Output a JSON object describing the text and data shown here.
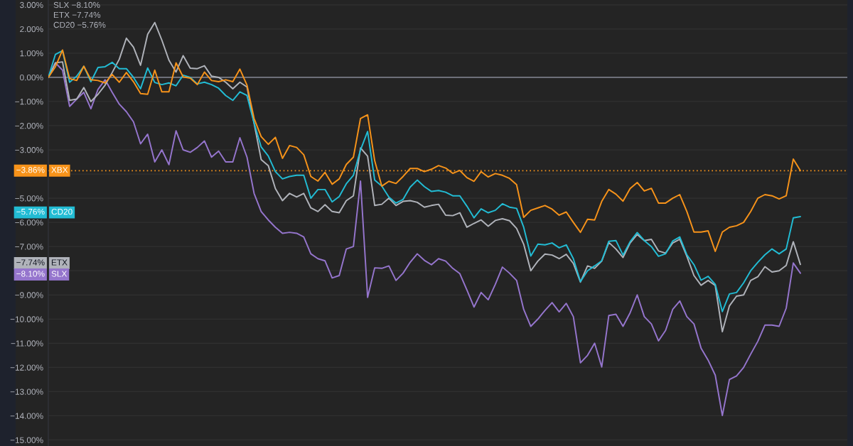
{
  "chart_data": {
    "type": "line",
    "categories": [
      null,
      null,
      null,
      null,
      null,
      null,
      null,
      null,
      null,
      null,
      null,
      null,
      null,
      null,
      null,
      null,
      null,
      null,
      null,
      null,
      null,
      null,
      null,
      null,
      null,
      null,
      null,
      null,
      null,
      null,
      null,
      null,
      null,
      null,
      null,
      null,
      null,
      null,
      null,
      null,
      null,
      null,
      null,
      null,
      null,
      null,
      null,
      null,
      null,
      null,
      null,
      null,
      null,
      null,
      null,
      null,
      null,
      null,
      null,
      null,
      null,
      null,
      null,
      null,
      null,
      null,
      null,
      null,
      null,
      null,
      null,
      null,
      null,
      null,
      null,
      null,
      null,
      null,
      null,
      null,
      null,
      null,
      null,
      null,
      null,
      null,
      null,
      null,
      null,
      null,
      null,
      null,
      null,
      null,
      null,
      null,
      null,
      null,
      null,
      null,
      null,
      null,
      null,
      null,
      null,
      null,
      null
    ],
    "series": [
      {
        "name": "XBX",
        "color": "#f7931a",
        "values": [
          0,
          0.44,
          1.13,
          -0.05,
          -0.13,
          0.46,
          -0.1,
          -0.13,
          -0.23,
          0.12,
          -0.2,
          0.2,
          -0.18,
          -0.67,
          -0.7,
          0.3,
          -0.6,
          -0.6,
          0.6,
          0.02,
          -0.03,
          -0.3,
          0.22,
          -0.13,
          -0.18,
          -0.1,
          -0.18,
          0.34,
          -0.32,
          -1.7,
          -2.45,
          -2.77,
          -2.48,
          -3.35,
          -2.82,
          -2.9,
          -3.2,
          -4.1,
          -4.29,
          -3.93,
          -4.42,
          -4.2,
          -3.6,
          -3.3,
          -1.7,
          -1.55,
          -3.45,
          -4.5,
          -4.3,
          -4.39,
          -4.1,
          -3.77,
          -3.77,
          -3.9,
          -3.8,
          -3.65,
          -3.75,
          -3.97,
          -3.85,
          -4.15,
          -4.3,
          -3.9,
          -4.12,
          -3.98,
          -4.05,
          -4.18,
          -4.44,
          -5.79,
          -5.5,
          -5.4,
          -5.3,
          -5.45,
          -5.7,
          -5.57,
          -6.0,
          -6.41,
          -5.87,
          -5.9,
          -5.13,
          -4.64,
          -4.83,
          -5.12,
          -4.6,
          -4.35,
          -4.7,
          -4.59,
          -5.2,
          -5.2,
          -5.0,
          -4.85,
          -5.55,
          -6.4,
          -6.4,
          -6.35,
          -7.2,
          -6.4,
          -6.2,
          -6.14,
          -6.0,
          -5.55,
          -5.0,
          -4.85,
          -4.9,
          -5.03,
          -4.9,
          -3.38,
          -3.86
        ]
      },
      {
        "name": "CD20",
        "color": "#22bcd4",
        "values": [
          0,
          0.95,
          1.1,
          -0.2,
          0.05,
          0.46,
          -0.18,
          0.41,
          0.44,
          0.62,
          0.36,
          0.36,
          0.0,
          -0.47,
          0.39,
          -0.21,
          -0.3,
          -0.23,
          -0.35,
          0.09,
          0.0,
          -0.27,
          -0.2,
          -0.3,
          -0.45,
          -0.75,
          -0.95,
          -0.6,
          -0.75,
          -1.89,
          -2.88,
          -3.25,
          -3.9,
          -4.2,
          -4.1,
          -4.05,
          -4.05,
          -5.0,
          -4.64,
          -4.64,
          -5.15,
          -4.93,
          -4.4,
          -4.05,
          -3.0,
          -2.24,
          -4.25,
          -4.5,
          -4.95,
          -5.2,
          -5.05,
          -4.54,
          -4.25,
          -4.52,
          -4.72,
          -4.68,
          -4.75,
          -4.9,
          -4.9,
          -5.33,
          -5.81,
          -5.44,
          -5.6,
          -5.5,
          -5.23,
          -5.37,
          -5.42,
          -6.2,
          -7.39,
          -6.9,
          -6.93,
          -6.85,
          -7.05,
          -6.93,
          -7.5,
          -8.45,
          -8.0,
          -7.8,
          -7.59,
          -6.78,
          -6.75,
          -7.35,
          -6.8,
          -6.42,
          -6.75,
          -7.0,
          -7.4,
          -7.3,
          -6.77,
          -6.6,
          -7.34,
          -7.75,
          -8.39,
          -8.23,
          -8.56,
          -9.69,
          -8.96,
          -8.9,
          -8.5,
          -8.0,
          -7.65,
          -7.34,
          -7.1,
          -7.3,
          -7.1,
          -5.81,
          -5.76
        ]
      },
      {
        "name": "ETX",
        "color": "#b0b3ba",
        "values": [
          0,
          0.6,
          0.64,
          -0.95,
          -0.9,
          -0.42,
          -1.0,
          -0.7,
          -0.32,
          0.2,
          0.75,
          1.62,
          1.25,
          0.5,
          1.78,
          2.27,
          1.54,
          0.71,
          0.22,
          0.9,
          0.38,
          0.36,
          0.48,
          0.05,
          0.0,
          -0.2,
          -0.47,
          -0.2,
          -0.4,
          -1.9,
          -3.4,
          -3.65,
          -4.6,
          -5.1,
          -4.8,
          -4.95,
          -4.8,
          -5.4,
          -5.55,
          -5.27,
          -5.55,
          -5.6,
          -5.1,
          -4.9,
          -2.92,
          -3.26,
          -5.3,
          -5.25,
          -5.0,
          -5.3,
          -5.13,
          -5.1,
          -5.17,
          -5.37,
          -5.3,
          -5.25,
          -5.7,
          -5.72,
          -5.6,
          -6.2,
          -6.04,
          -5.9,
          -6.16,
          -5.92,
          -5.85,
          -5.93,
          -6.25,
          -6.9,
          -8.0,
          -7.6,
          -7.31,
          -7.35,
          -7.5,
          -7.32,
          -7.7,
          -8.47,
          -7.8,
          -7.9,
          -7.6,
          -6.83,
          -7.1,
          -7.45,
          -6.85,
          -6.5,
          -6.75,
          -6.7,
          -7.18,
          -7.27,
          -6.85,
          -6.7,
          -7.4,
          -8.2,
          -8.6,
          -8.4,
          -8.61,
          -10.52,
          -9.45,
          -9.05,
          -9.0,
          -8.4,
          -8.25,
          -7.83,
          -8.05,
          -8.0,
          -7.78,
          -6.8,
          -7.74
        ]
      },
      {
        "name": "SLX",
        "color": "#9575cd",
        "values": [
          0,
          0.6,
          0.3,
          -1.2,
          -0.9,
          -0.62,
          -1.3,
          -0.5,
          -0.1,
          -0.62,
          -1.11,
          -1.42,
          -1.84,
          -2.75,
          -2.35,
          -3.5,
          -3.0,
          -3.61,
          -2.21,
          -3.0,
          -3.1,
          -2.9,
          -2.63,
          -3.3,
          -3.05,
          -3.5,
          -3.5,
          -2.5,
          -3.3,
          -4.8,
          -5.55,
          -5.9,
          -6.2,
          -6.45,
          -6.41,
          -6.45,
          -6.6,
          -7.3,
          -7.5,
          -7.59,
          -8.3,
          -8.2,
          -7.1,
          -7.0,
          -4.29,
          -9.1,
          -7.88,
          -7.9,
          -7.8,
          -8.4,
          -8.1,
          -7.65,
          -7.3,
          -7.57,
          -7.75,
          -7.5,
          -7.6,
          -7.9,
          -8.12,
          -8.8,
          -9.5,
          -8.9,
          -9.2,
          -8.56,
          -7.85,
          -8.1,
          -8.4,
          -9.6,
          -10.3,
          -10.0,
          -9.64,
          -9.32,
          -9.7,
          -9.35,
          -9.9,
          -11.81,
          -11.5,
          -11.0,
          -11.98,
          -9.85,
          -9.8,
          -10.3,
          -9.74,
          -9.0,
          -9.9,
          -10.2,
          -10.9,
          -10.47,
          -9.6,
          -9.25,
          -9.9,
          -10.2,
          -11.2,
          -11.7,
          -12.32,
          -13.99,
          -12.5,
          -12.35,
          -12.0,
          -11.45,
          -10.92,
          -10.25,
          -10.25,
          -10.3,
          -9.55,
          -7.68,
          -8.1
        ]
      }
    ],
    "ylim": [
      -15.25,
      3.2
    ],
    "yticks": [
      {
        "value": 3,
        "label": "3.00%"
      },
      {
        "value": 2,
        "label": "2.00%"
      },
      {
        "value": 1,
        "label": "1.00%"
      },
      {
        "value": 0,
        "label": "0.00%"
      },
      {
        "value": -1,
        "label": "−1.00%"
      },
      {
        "value": -2,
        "label": "−2.00%"
      },
      {
        "value": -3,
        "label": "−3.00%"
      },
      {
        "value": -4,
        "label": null
      },
      {
        "value": -5,
        "label": "−5.00%"
      },
      {
        "value": -6,
        "label": "−6.00%"
      },
      {
        "value": -7,
        "label": "−7.00%"
      },
      {
        "value": -8,
        "label": null
      },
      {
        "value": -9,
        "label": "−9.00%"
      },
      {
        "value": -10,
        "label": "−10.00%"
      },
      {
        "value": -11,
        "label": "−11.00%"
      },
      {
        "value": -12,
        "label": "−12.00%"
      },
      {
        "value": -13,
        "label": "−13.00%"
      },
      {
        "value": -14,
        "label": "−14.00%"
      },
      {
        "value": -15,
        "label": "−15.00%"
      }
    ],
    "grid": "y",
    "tick_labels": "y",
    "legend": "left",
    "ref_lines": [
      {
        "axis": "y",
        "value": 0,
        "color": "#787b86",
        "line_style": "solid"
      },
      {
        "axis": "y",
        "value": -3.86,
        "color": "#f7931a",
        "line_style": "dotted"
      }
    ],
    "annotations": [
      "−3.86%",
      "−5.76%",
      "−7.74%",
      "−8.10%",
      "SLX −8.10%",
      "ETX −7.74%",
      "CD20 −5.76%"
    ]
  }
}
